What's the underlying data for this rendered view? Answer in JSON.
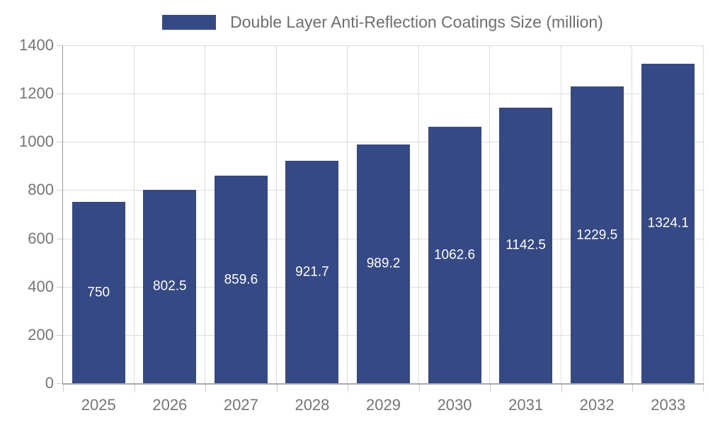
{
  "legend": {
    "label": "Double Layer Anti-Reflection Coatings Size (million)"
  },
  "chart_data": {
    "type": "bar",
    "title": "Double Layer Anti-Reflection Coatings Size (million)",
    "categories": [
      "2025",
      "2026",
      "2027",
      "2028",
      "2029",
      "2030",
      "2031",
      "2032",
      "2033"
    ],
    "values": [
      750,
      802.5,
      859.6,
      921.7,
      989.2,
      1062.6,
      1142.5,
      1229.5,
      1324.1
    ],
    "xlabel": "",
    "ylabel": "",
    "ylim": [
      0,
      1400
    ],
    "ytick_step": 200,
    "grid": true,
    "legend_position": "top",
    "bar_color": "#354984",
    "value_label_color": "#ffffff",
    "axis_text_color": "#757575",
    "grid_color": "#dddddd"
  }
}
